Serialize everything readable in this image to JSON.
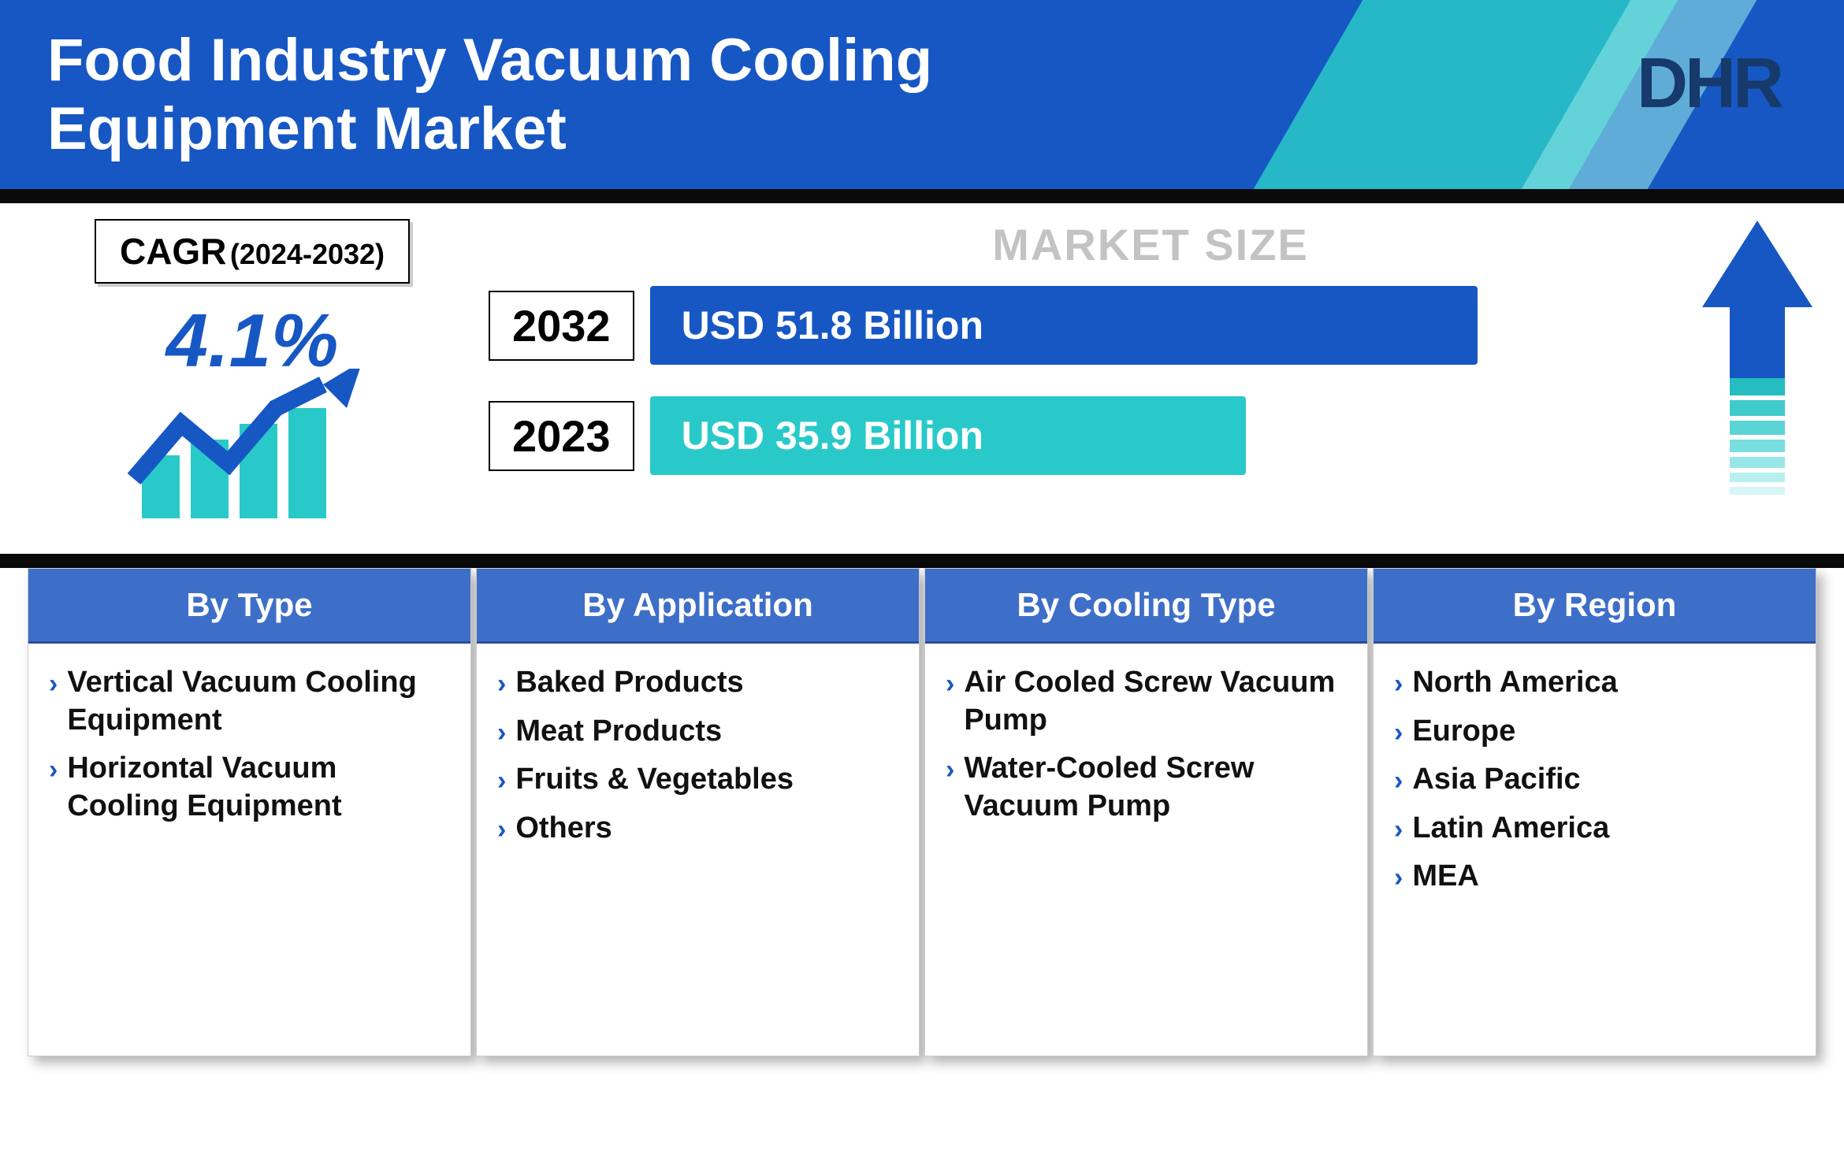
{
  "header": {
    "title": "Food Industry Vacuum Cooling Equipment Market",
    "logo_text": "DHR",
    "banner_color": "#1757c4",
    "accent1_color": "#2ac9c9",
    "accent2_color": "#8de5e5",
    "title_color": "#ffffff",
    "title_fontsize": 76
  },
  "cagr": {
    "label": "CAGR",
    "period": "(2024-2032)",
    "value": "4.1%",
    "value_color": "#1757c4",
    "value_fontsize": 96,
    "chart_bar_color": "#2ac9c9",
    "chart_line_color": "#1757c4"
  },
  "market_size": {
    "title": "MARKET SIZE",
    "bars": [
      {
        "year": "2032",
        "value_label": "USD 51.8 Billion",
        "value_num": 51.8,
        "bar_color": "#1757c4",
        "width_pct": 100
      },
      {
        "year": "2023",
        "value_label": "USD 35.9 Billion",
        "value_num": 35.9,
        "bar_color": "#2ac9c9",
        "width_pct": 72
      }
    ],
    "arrow_top_color": "#1757c4",
    "arrow_bottom_color": "#2ac9c9"
  },
  "segments": [
    {
      "title": "By Type",
      "items": [
        "Vertical Vacuum Cooling Equipment",
        "Horizontal Vacuum Cooling Equipment"
      ]
    },
    {
      "title": "By Application",
      "items": [
        "Baked Products",
        "Meat Products",
        "Fruits & Vegetables",
        "Others"
      ]
    },
    {
      "title": "By Cooling Type",
      "items": [
        "Air Cooled Screw Vacuum Pump",
        "Water-Cooled Screw Vacuum Pump"
      ]
    },
    {
      "title": "By Region",
      "items": [
        "North America",
        "Europe",
        "Asia Pacific",
        "Latin America",
        "MEA"
      ]
    }
  ],
  "styling": {
    "seg_header_bg": "#3e6fc8",
    "seg_header_color": "#ffffff",
    "seg_header_fontsize": 42,
    "seg_item_fontsize": 38,
    "chevron_color": "#1757c4",
    "card_shadow": "8px 8px 14px rgba(0,0,0,0.3)",
    "dark_strip_color": "#0a0a0a"
  }
}
